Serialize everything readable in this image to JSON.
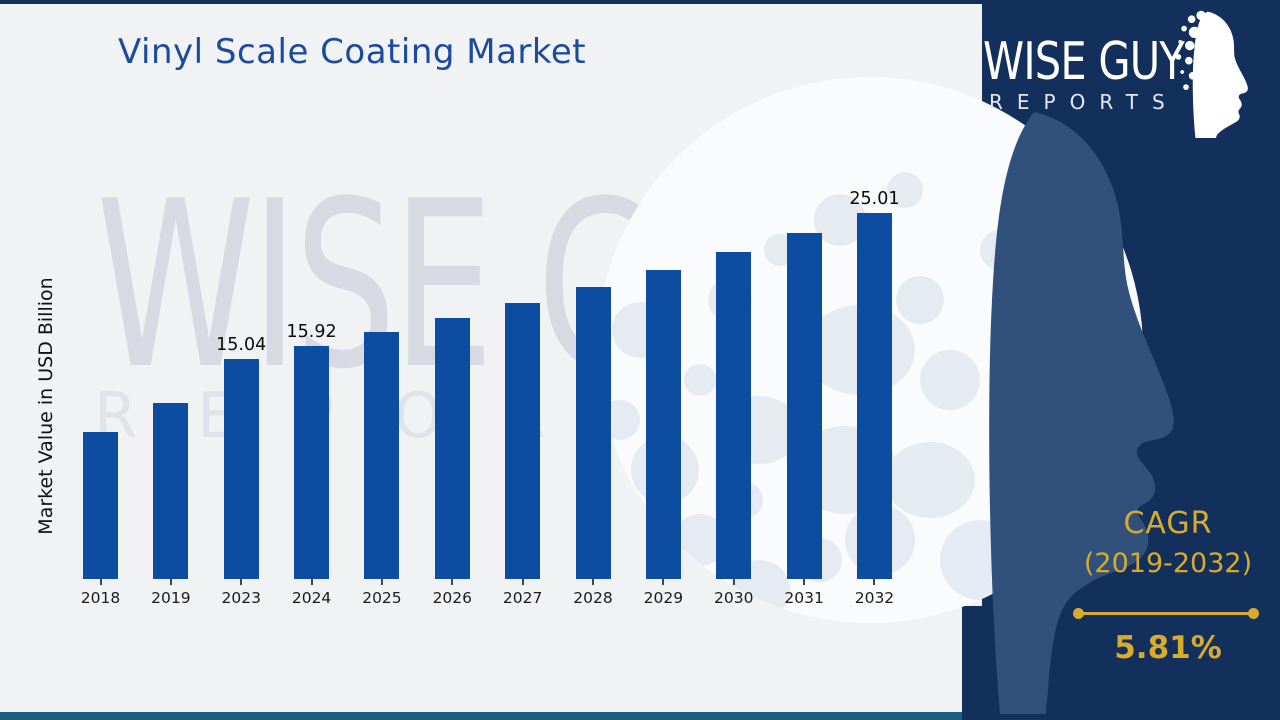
{
  "title": "Vinyl Scale Coating Market",
  "y_axis_label": "Market Value in USD Billion",
  "watermark": {
    "line1": "WISE GUY",
    "line2": "REPORTS"
  },
  "brand_logo": {
    "line1": "WISE GUY",
    "line2": "REPORTS",
    "icon": "face-profile-dots-icon"
  },
  "cagr": {
    "title": "CAGR",
    "range": "(2019-2032)",
    "value": "5.81%"
  },
  "colors": {
    "bar_blue": "#0d4da1",
    "navy_panel": "#132f5b",
    "title_blue": "#1b4b9d",
    "gold": "#d7ab2e",
    "teal_strip": "#1b6080",
    "background": "#f1f2f4"
  },
  "chart_data": {
    "type": "bar",
    "title": "Vinyl Scale Coating Market",
    "xlabel": "",
    "ylabel": "Market Value in USD Billion",
    "unit": "USD Billion",
    "categories": [
      "2018",
      "2019",
      "2023",
      "2024",
      "2025",
      "2026",
      "2027",
      "2028",
      "2029",
      "2030",
      "2031",
      "2032"
    ],
    "values": [
      10.05,
      12.03,
      15.04,
      15.92,
      16.85,
      17.83,
      18.86,
      19.96,
      21.12,
      22.34,
      23.64,
      25.01
    ],
    "value_labels": [
      null,
      null,
      "15.04",
      "15.92",
      null,
      null,
      null,
      null,
      null,
      null,
      null,
      "25.01"
    ],
    "ylim": [
      0,
      27
    ],
    "grid": false,
    "legend": null,
    "note": "values without printed labels are estimated from bar heights"
  }
}
